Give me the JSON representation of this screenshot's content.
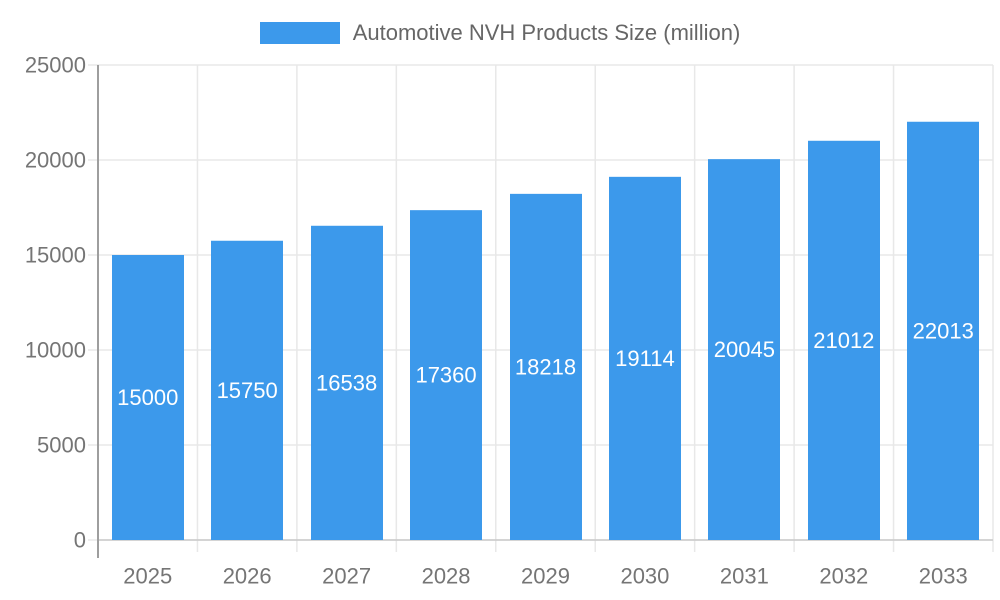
{
  "chart_data": {
    "type": "bar",
    "title": "",
    "xlabel": "",
    "ylabel": "",
    "categories": [
      "2025",
      "2026",
      "2027",
      "2028",
      "2029",
      "2030",
      "2031",
      "2032",
      "2033"
    ],
    "series": [
      {
        "name": "Automotive NVH Products Size (million)",
        "values": [
          15000,
          15750,
          16538,
          17360,
          18218,
          19114,
          20045,
          21012,
          22013
        ]
      }
    ],
    "ylim": [
      0,
      25000
    ],
    "yticks": [
      0,
      5000,
      10000,
      15000,
      20000,
      25000
    ],
    "grid": true,
    "legend": {
      "position": "top-center",
      "label": "Automotive NVH Products Size (million)"
    },
    "value_labels": "inside-bar-centered",
    "colors": {
      "bar": "#3C99EB",
      "bar_value_text": "#FFFFFF",
      "gridline": "#E8E8E8",
      "x_axis_line": "#C9C9C9",
      "y_axis_line": "#9E9E9E",
      "axis_tick_text": "#757575",
      "legend_text": "#666666",
      "background": "#FFFFFF"
    }
  }
}
